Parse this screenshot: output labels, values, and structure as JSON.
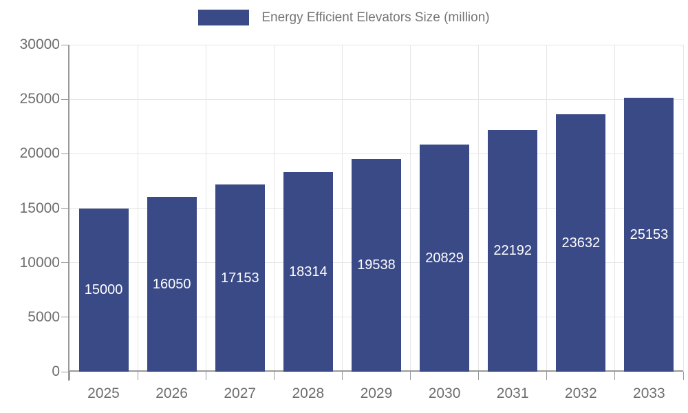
{
  "legend": {
    "label": "Energy Efficient Elevators Size (million)"
  },
  "chart_data": {
    "type": "bar",
    "title": "Energy Efficient Elevators Size (million)",
    "series_name": "Energy Efficient Elevators Size (million)",
    "categories": [
      "2025",
      "2026",
      "2027",
      "2028",
      "2029",
      "2030",
      "2031",
      "2032",
      "2033"
    ],
    "values": [
      15000,
      16050,
      17153,
      18314,
      19538,
      20829,
      22192,
      23632,
      25153
    ],
    "value_labels": [
      "15000",
      "16050",
      "17153",
      "18314",
      "19538",
      "20829",
      "22192",
      "23632",
      "25153"
    ],
    "xlabel": "",
    "ylabel": "",
    "ylim": [
      0,
      30000
    ],
    "yticks": [
      0,
      5000,
      10000,
      15000,
      20000,
      25000,
      30000
    ],
    "ytick_labels": [
      "0",
      "5000",
      "10000",
      "15000",
      "20000",
      "25000",
      "30000"
    ],
    "grid": true,
    "legend_position": "top",
    "colors": {
      "bar": "#3A4A87",
      "value_label": "#FFFFFF",
      "axis_line": "#999999",
      "gridline": "#E6E6E6",
      "tick_text": "#6E6E6E",
      "legend_text": "#757575",
      "background": "#FFFFFF"
    }
  }
}
